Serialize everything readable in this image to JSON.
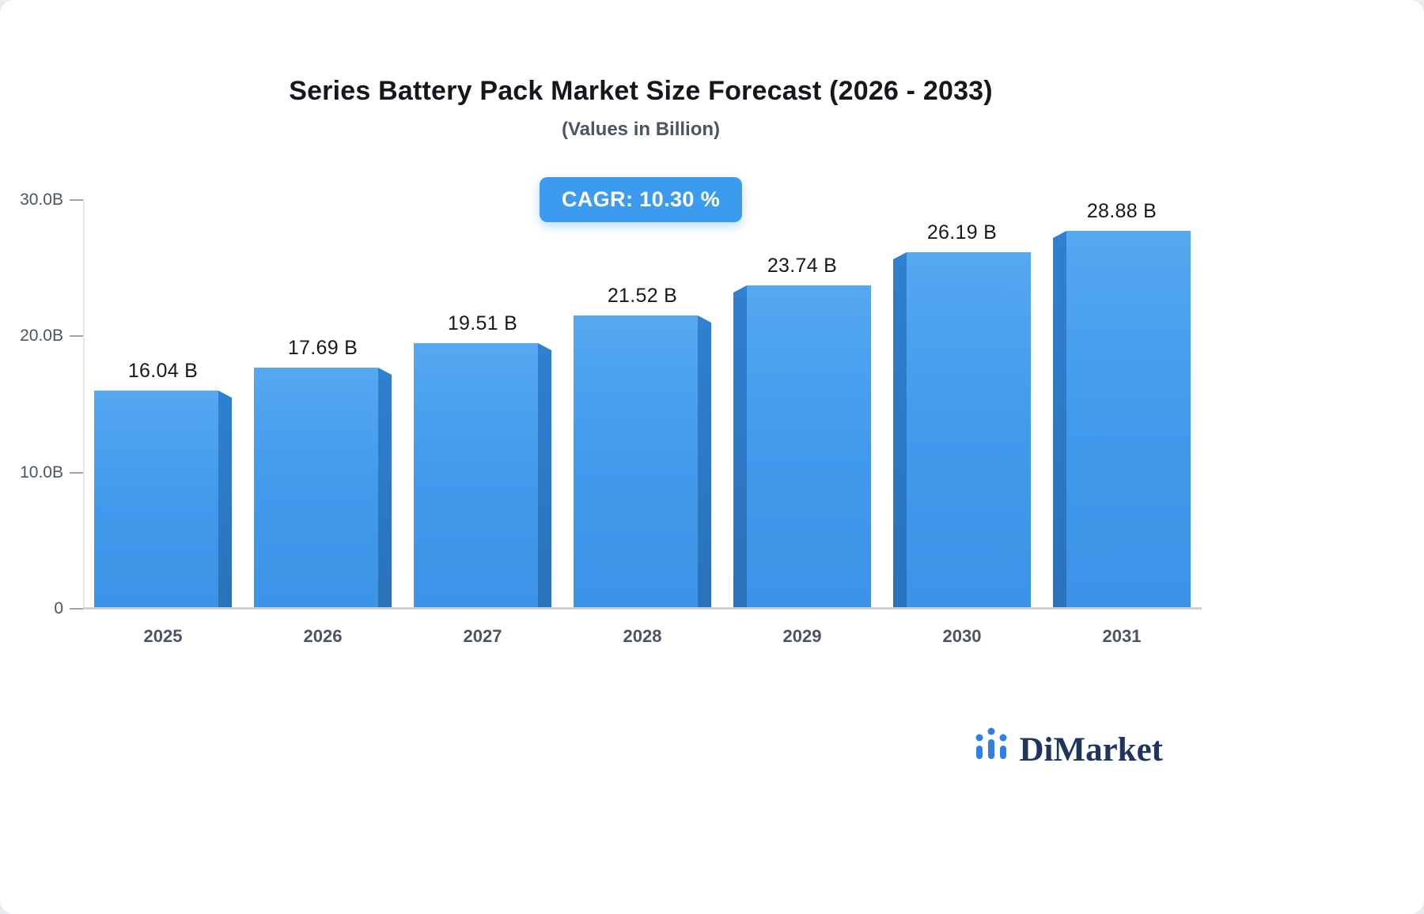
{
  "title": "Series Battery Pack Market Size Forecast (2026 - 2033)",
  "subtitle": "(Values in Billion)",
  "cagr_badge": "CAGR: 10.30 %",
  "brand": {
    "name": "DiMarket",
    "icon": "bar-chart-logo-icon"
  },
  "colors": {
    "bar_face": "#419aec",
    "bar_face_light": "#55a8f1",
    "bar_side": "#2a72ba",
    "badge_bg": "#3d9bef",
    "title_text": "#15171c",
    "subtitle_text": "#4a5462",
    "axis_text": "#4a5462",
    "logo_text": "#20355e",
    "logo_icon": "#2e7fe8"
  },
  "chart_data": {
    "type": "bar",
    "title": "Series Battery Pack Market Size Forecast (2026 - 2033)",
    "subtitle": "(Values in Billion)",
    "categories": [
      "2025",
      "2026",
      "2027",
      "2028",
      "2029",
      "2030",
      "2031"
    ],
    "values": [
      16.04,
      17.69,
      19.51,
      21.52,
      23.74,
      26.19,
      28.88
    ],
    "value_labels": [
      "16.04 B",
      "17.69 B",
      "19.51 B",
      "21.52 B",
      "23.74 B",
      "26.19 B",
      "28.88 B"
    ],
    "xlabel": "",
    "ylabel": "",
    "ylim": [
      0,
      30
    ],
    "yticks": [
      {
        "value": 0,
        "label": "0"
      },
      {
        "value": 10,
        "label": "10.0B"
      },
      {
        "value": 20,
        "label": "20.0B"
      },
      {
        "value": 30,
        "label": "30.0B"
      }
    ],
    "grid": false,
    "legend": null,
    "annotations": [
      "CAGR: 10.30 %"
    ]
  }
}
